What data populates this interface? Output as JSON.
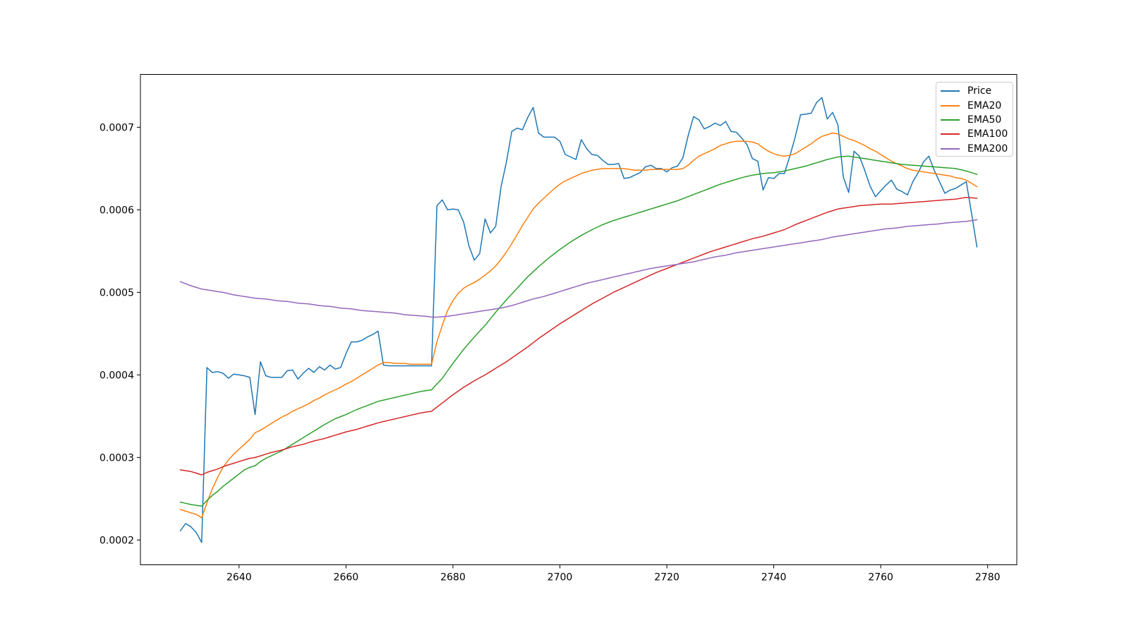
{
  "chart_data": {
    "type": "line",
    "title": "",
    "xlabel": "",
    "ylabel": "",
    "grid": false,
    "legend": {
      "position": "upper-right",
      "background": "#ffffff",
      "border_color": "#cccccc"
    },
    "xlim": [
      2621.55,
      2785.45
    ],
    "ylim": [
      0.00017,
      0.000764
    ],
    "x_ticks": [
      2640,
      2660,
      2680,
      2700,
      2720,
      2740,
      2760,
      2780
    ],
    "x_tick_labels": [
      "2640",
      "2660",
      "2680",
      "2700",
      "2720",
      "2740",
      "2760",
      "2780"
    ],
    "y_ticks": [
      0.0002,
      0.0003,
      0.0004,
      0.0005,
      0.0006,
      0.0007
    ],
    "y_tick_labels": [
      "0.0002",
      "0.0003",
      "0.0004",
      "0.0005",
      "0.0006",
      "0.0007"
    ],
    "x": [
      2629,
      2630,
      2631,
      2632,
      2633,
      2634,
      2635,
      2636,
      2637,
      2638,
      2639,
      2640,
      2641,
      2642,
      2643,
      2644,
      2645,
      2646,
      2647,
      2648,
      2649,
      2650,
      2651,
      2652,
      2653,
      2654,
      2655,
      2656,
      2657,
      2658,
      2659,
      2660,
      2661,
      2662,
      2663,
      2664,
      2665,
      2666,
      2667,
      2668,
      2669,
      2670,
      2671,
      2672,
      2673,
      2674,
      2675,
      2676,
      2677,
      2678,
      2679,
      2680,
      2681,
      2682,
      2683,
      2684,
      2685,
      2686,
      2687,
      2688,
      2689,
      2690,
      2691,
      2692,
      2693,
      2694,
      2695,
      2696,
      2697,
      2698,
      2699,
      2700,
      2701,
      2702,
      2703,
      2704,
      2705,
      2706,
      2707,
      2708,
      2709,
      2710,
      2711,
      2712,
      2713,
      2714,
      2715,
      2716,
      2717,
      2718,
      2719,
      2720,
      2721,
      2722,
      2723,
      2724,
      2725,
      2726,
      2727,
      2728,
      2729,
      2730,
      2731,
      2732,
      2733,
      2734,
      2735,
      2736,
      2737,
      2738,
      2739,
      2740,
      2741,
      2742,
      2743,
      2744,
      2745,
      2746,
      2747,
      2748,
      2749,
      2750,
      2751,
      2752,
      2753,
      2754,
      2755,
      2756,
      2757,
      2758,
      2759,
      2760,
      2761,
      2762,
      2763,
      2764,
      2765,
      2766,
      2767,
      2768,
      2769,
      2770,
      2771,
      2772,
      2773,
      2774,
      2775,
      2776,
      2777,
      2778
    ],
    "series": [
      {
        "name": "Price",
        "color": "#1f77b4",
        "values": [
          0.000211,
          0.00022,
          0.000216,
          0.000209,
          0.000197,
          0.000409,
          0.000403,
          0.000404,
          0.000402,
          0.000396,
          0.000401,
          0.0004,
          0.000399,
          0.000397,
          0.000352,
          0.000416,
          0.000399,
          0.000397,
          0.000397,
          0.000397,
          0.000405,
          0.000406,
          0.000395,
          0.000402,
          0.000408,
          0.000403,
          0.00041,
          0.000406,
          0.000412,
          0.000407,
          0.000409,
          0.000426,
          0.00044,
          0.00044,
          0.000442,
          0.000446,
          0.000449,
          0.000453,
          0.000412,
          0.000411,
          0.000411,
          0.000411,
          0.000411,
          0.000411,
          0.000411,
          0.000411,
          0.000411,
          0.000411,
          0.000605,
          0.000612,
          0.0006,
          0.000601,
          0.0006,
          0.000585,
          0.000556,
          0.000539,
          0.000547,
          0.000589,
          0.000572,
          0.00058,
          0.000628,
          0.000658,
          0.000695,
          0.000699,
          0.000697,
          0.000712,
          0.000724,
          0.000693,
          0.000688,
          0.000688,
          0.000688,
          0.000683,
          0.000667,
          0.000664,
          0.000661,
          0.000685,
          0.000674,
          0.000667,
          0.000666,
          0.00066,
          0.000655,
          0.000655,
          0.000656,
          0.000638,
          0.000639,
          0.000642,
          0.000645,
          0.000652,
          0.000654,
          0.00065,
          0.00065,
          0.000646,
          0.000651,
          0.000653,
          0.000663,
          0.00069,
          0.000713,
          0.000709,
          0.000698,
          0.000701,
          0.000705,
          0.000702,
          0.000707,
          0.000695,
          0.000694,
          0.000687,
          0.000679,
          0.000662,
          0.000659,
          0.000624,
          0.000639,
          0.000638,
          0.000644,
          0.000644,
          0.000665,
          0.000688,
          0.000715,
          0.000716,
          0.000717,
          0.00073,
          0.000736,
          0.00071,
          0.000718,
          0.000703,
          0.00064,
          0.000621,
          0.000671,
          0.000665,
          0.000648,
          0.000629,
          0.000616,
          0.000623,
          0.00063,
          0.000636,
          0.000625,
          0.000622,
          0.000618,
          0.000634,
          0.000645,
          0.000658,
          0.000665,
          0.000648,
          0.000634,
          0.00062,
          0.000624,
          0.000626,
          0.00063,
          0.000634,
          0.000595,
          0.000555
        ]
      },
      {
        "name": "EMA20",
        "color": "#ff7f0e",
        "values": [
          0.000237,
          0.000235,
          0.000233,
          0.000231,
          0.000227,
          0.000245,
          0.000262,
          0.000276,
          0.000288,
          0.000297,
          0.000304,
          0.00031,
          0.000316,
          0.000322,
          0.00033,
          0.000333,
          0.000337,
          0.000341,
          0.000345,
          0.000349,
          0.000352,
          0.000356,
          0.000359,
          0.000362,
          0.000365,
          0.000369,
          0.000372,
          0.000376,
          0.000379,
          0.000382,
          0.000385,
          0.000389,
          0.000392,
          0.000396,
          0.0004,
          0.000404,
          0.000408,
          0.000412,
          0.000415,
          0.000415,
          0.000414,
          0.000414,
          0.000414,
          0.000413,
          0.000413,
          0.000413,
          0.000413,
          0.000413,
          0.00044,
          0.00046,
          0.000478,
          0.00049,
          0.000499,
          0.000505,
          0.000509,
          0.000512,
          0.000516,
          0.000521,
          0.000526,
          0.000532,
          0.00054,
          0.000549,
          0.000559,
          0.00057,
          0.000581,
          0.000591,
          0.000601,
          0.000608,
          0.000614,
          0.00062,
          0.000626,
          0.000631,
          0.000635,
          0.000638,
          0.000641,
          0.000644,
          0.000646,
          0.000648,
          0.000649,
          0.00065,
          0.00065,
          0.00065,
          0.00065,
          0.00065,
          0.000649,
          0.000648,
          0.000648,
          0.000648,
          0.000649,
          0.000649,
          0.000649,
          0.000649,
          0.000649,
          0.000649,
          0.00065,
          0.000654,
          0.00066,
          0.000665,
          0.000668,
          0.000671,
          0.000674,
          0.000678,
          0.00068,
          0.000682,
          0.000683,
          0.000683,
          0.000683,
          0.000682,
          0.00068,
          0.000675,
          0.000671,
          0.000668,
          0.000666,
          0.000665,
          0.000666,
          0.000668,
          0.000672,
          0.000676,
          0.00068,
          0.000685,
          0.000689,
          0.000691,
          0.000693,
          0.000692,
          0.000689,
          0.000686,
          0.000684,
          0.000681,
          0.000678,
          0.000674,
          0.000671,
          0.000667,
          0.000663,
          0.000659,
          0.000656,
          0.000653,
          0.00065,
          0.000648,
          0.000647,
          0.000646,
          0.000645,
          0.000644,
          0.000643,
          0.000642,
          0.000641,
          0.000639,
          0.000638,
          0.000636,
          0.000632,
          0.000628
        ]
      },
      {
        "name": "EMA50",
        "color": "#2ca02c",
        "values": [
          0.000246,
          0.0002445,
          0.000243,
          0.000242,
          0.000241,
          0.000248,
          0.000254,
          0.000259,
          0.000265,
          0.00027,
          0.000275,
          0.00028,
          0.000285,
          0.000288,
          0.00029,
          0.000295,
          0.000299,
          0.000302,
          0.000305,
          0.000308,
          0.000312,
          0.000316,
          0.00032,
          0.000324,
          0.000328,
          0.000332,
          0.000336,
          0.00034,
          0.0003435,
          0.000347,
          0.0003495,
          0.000352,
          0.000355,
          0.000358,
          0.0003605,
          0.000363,
          0.0003655,
          0.000368,
          0.0003695,
          0.000371,
          0.0003725,
          0.000374,
          0.0003755,
          0.000377,
          0.0003785,
          0.00038,
          0.000381,
          0.000382,
          0.000389,
          0.000396,
          0.000405,
          0.000414,
          0.0004225,
          0.000431,
          0.0004385,
          0.000446,
          0.000453,
          0.00046,
          0.000468,
          0.000476,
          0.0004835,
          0.000491,
          0.000498,
          0.000505,
          0.000512,
          0.000519,
          0.000525,
          0.000531,
          0.0005365,
          0.000542,
          0.000547,
          0.000552,
          0.0005565,
          0.000561,
          0.000565,
          0.000569,
          0.0005725,
          0.000576,
          0.000579,
          0.000582,
          0.0005845,
          0.000587,
          0.000589,
          0.000591,
          0.000593,
          0.000595,
          0.000597,
          0.000599,
          0.000601,
          0.000603,
          0.000605,
          0.000607,
          0.000609,
          0.000611,
          0.0006135,
          0.000616,
          0.0006185,
          0.000621,
          0.0006235,
          0.000626,
          0.0006285,
          0.000631,
          0.000633,
          0.000635,
          0.000637,
          0.000639,
          0.0006405,
          0.000642,
          0.000643,
          0.000644,
          0.0006445,
          0.000645,
          0.000646,
          0.000647,
          0.0006485,
          0.00065,
          0.0006515,
          0.000653,
          0.000655,
          0.000657,
          0.000659,
          0.000661,
          0.0006625,
          0.000664,
          0.0006645,
          0.000665,
          0.000664,
          0.000663,
          0.000662,
          0.000661,
          0.00066,
          0.000659,
          0.000658,
          0.000657,
          0.000656,
          0.000655,
          0.0006545,
          0.000654,
          0.0006535,
          0.000653,
          0.0006525,
          0.000652,
          0.0006515,
          0.000651,
          0.0006505,
          0.00065,
          0.0006485,
          0.000647,
          0.000645,
          0.000643
        ]
      },
      {
        "name": "EMA100",
        "color": "#d62728",
        "values": [
          0.000285,
          0.000284,
          0.000283,
          0.000281,
          0.000279,
          0.000282,
          0.000284,
          0.000286,
          0.000289,
          0.000291,
          0.000293,
          0.000295,
          0.000297,
          0.000299,
          0.0003,
          0.000302,
          0.000304,
          0.000306,
          0.0003075,
          0.000309,
          0.000311,
          0.000313,
          0.0003145,
          0.000316,
          0.000318,
          0.00032,
          0.0003215,
          0.000323,
          0.000325,
          0.000327,
          0.000329,
          0.000331,
          0.0003325,
          0.000334,
          0.000336,
          0.000338,
          0.00034,
          0.000342,
          0.0003435,
          0.000345,
          0.0003465,
          0.000348,
          0.0003495,
          0.000351,
          0.0003525,
          0.000354,
          0.000355,
          0.000356,
          0.000361,
          0.000366,
          0.000371,
          0.000376,
          0.0003805,
          0.000385,
          0.000389,
          0.000393,
          0.0003965,
          0.0004,
          0.000404,
          0.000408,
          0.000412,
          0.000416,
          0.0004205,
          0.000425,
          0.0004295,
          0.000434,
          0.000439,
          0.000444,
          0.0004485,
          0.000453,
          0.0004575,
          0.000462,
          0.000466,
          0.00047,
          0.000474,
          0.000478,
          0.000482,
          0.000486,
          0.0004895,
          0.000493,
          0.0004965,
          0.0005,
          0.000503,
          0.000506,
          0.000509,
          0.000512,
          0.000515,
          0.000518,
          0.000521,
          0.000524,
          0.0005265,
          0.000529,
          0.0005315,
          0.000534,
          0.0005365,
          0.000539,
          0.0005415,
          0.000544,
          0.0005465,
          0.000549,
          0.000551,
          0.000553,
          0.000555,
          0.000557,
          0.000559,
          0.000561,
          0.000563,
          0.000565,
          0.0005665,
          0.000568,
          0.00057,
          0.000572,
          0.000574,
          0.000576,
          0.000579,
          0.000582,
          0.0005845,
          0.000587,
          0.0005895,
          0.000592,
          0.0005945,
          0.000597,
          0.000599,
          0.000601,
          0.000602,
          0.000603,
          0.000604,
          0.000605,
          0.0006055,
          0.000606,
          0.0006065,
          0.000607,
          0.000607,
          0.000607,
          0.0006075,
          0.000608,
          0.0006085,
          0.000609,
          0.0006095,
          0.00061,
          0.0006105,
          0.000611,
          0.0006115,
          0.000612,
          0.0006125,
          0.000613,
          0.000614,
          0.000615,
          0.0006145,
          0.000614
        ]
      },
      {
        "name": "EMA200",
        "color": "#9467bd",
        "values": [
          0.000513,
          0.0005105,
          0.000508,
          0.000506,
          0.000504,
          0.000503,
          0.000502,
          0.000501,
          0.0005,
          0.0004985,
          0.000497,
          0.000496,
          0.000495,
          0.000494,
          0.000493,
          0.0004925,
          0.000492,
          0.000491,
          0.00049,
          0.0004895,
          0.000489,
          0.000488,
          0.000487,
          0.0004865,
          0.000486,
          0.000485,
          0.000484,
          0.0004835,
          0.000483,
          0.000482,
          0.000481,
          0.0004805,
          0.00048,
          0.000479,
          0.000478,
          0.0004775,
          0.000477,
          0.0004765,
          0.000476,
          0.0004755,
          0.000475,
          0.000474,
          0.000473,
          0.0004725,
          0.000472,
          0.0004715,
          0.000471,
          0.00047,
          0.00047,
          0.0004705,
          0.000471,
          0.000472,
          0.000473,
          0.000474,
          0.000475,
          0.000476,
          0.000477,
          0.000478,
          0.000479,
          0.00048,
          0.000481,
          0.0004825,
          0.000484,
          0.000486,
          0.000488,
          0.00049,
          0.000492,
          0.0004935,
          0.000495,
          0.000497,
          0.000499,
          0.000501,
          0.000503,
          0.000505,
          0.000507,
          0.000509,
          0.000511,
          0.0005125,
          0.000514,
          0.0005155,
          0.000517,
          0.0005185,
          0.00052,
          0.0005215,
          0.000523,
          0.0005245,
          0.000526,
          0.0005275,
          0.000529,
          0.00053,
          0.000531,
          0.000532,
          0.000533,
          0.000534,
          0.000535,
          0.000536,
          0.000537,
          0.0005385,
          0.00054,
          0.0005415,
          0.000543,
          0.000544,
          0.000545,
          0.0005465,
          0.000548,
          0.000549,
          0.00055,
          0.000551,
          0.000552,
          0.000553,
          0.000554,
          0.000555,
          0.000556,
          0.000557,
          0.000558,
          0.000559,
          0.00056,
          0.000561,
          0.000562,
          0.000563,
          0.000564,
          0.0005655,
          0.000567,
          0.000568,
          0.000569,
          0.00057,
          0.000571,
          0.000572,
          0.000573,
          0.000574,
          0.000575,
          0.000576,
          0.000577,
          0.0005775,
          0.000578,
          0.000579,
          0.00058,
          0.0005805,
          0.000581,
          0.0005815,
          0.000582,
          0.0005825,
          0.000583,
          0.000584,
          0.0005845,
          0.000585,
          0.0005855,
          0.000586,
          0.000587,
          0.000588
        ]
      }
    ]
  }
}
